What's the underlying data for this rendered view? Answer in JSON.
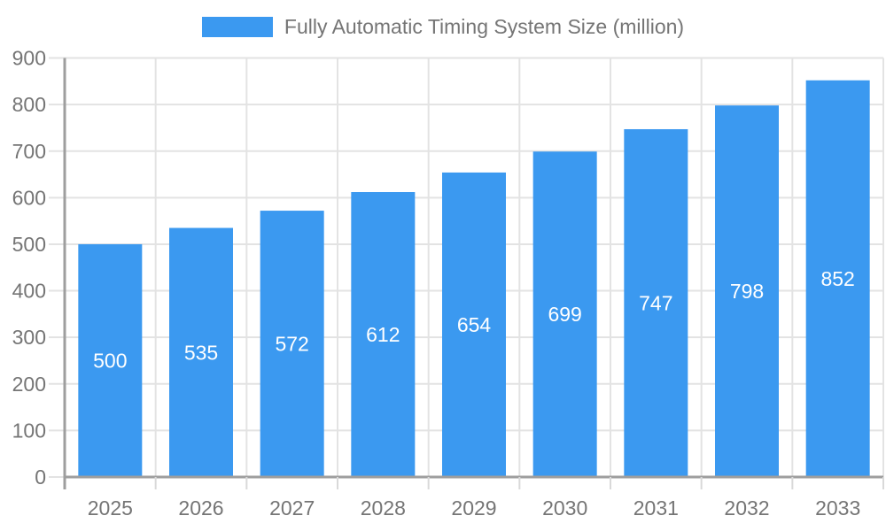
{
  "legend": {
    "label": "Fully Automatic Timing System Size (million)"
  },
  "colors": {
    "bar": "#3B99F0",
    "grid": "#E3E3E3",
    "tick": "#D9D9D9",
    "axis": "#9E9E9E",
    "text": "#757575",
    "value_label": "#FFFFFF",
    "background": "#FFFFFF"
  },
  "chart_data": {
    "type": "bar",
    "title": "Fully Automatic Timing System Size (million)",
    "categories": [
      "2025",
      "2026",
      "2027",
      "2028",
      "2029",
      "2030",
      "2031",
      "2032",
      "2033"
    ],
    "values": [
      500,
      535,
      572,
      612,
      654,
      699,
      747,
      798,
      852
    ],
    "xlabel": "",
    "ylabel": "",
    "ylim": [
      0,
      900
    ],
    "yticks": [
      0,
      100,
      200,
      300,
      400,
      500,
      600,
      700,
      800,
      900
    ],
    "grid": true,
    "legend_position": "top-center",
    "value_labels": "inside-middle"
  }
}
